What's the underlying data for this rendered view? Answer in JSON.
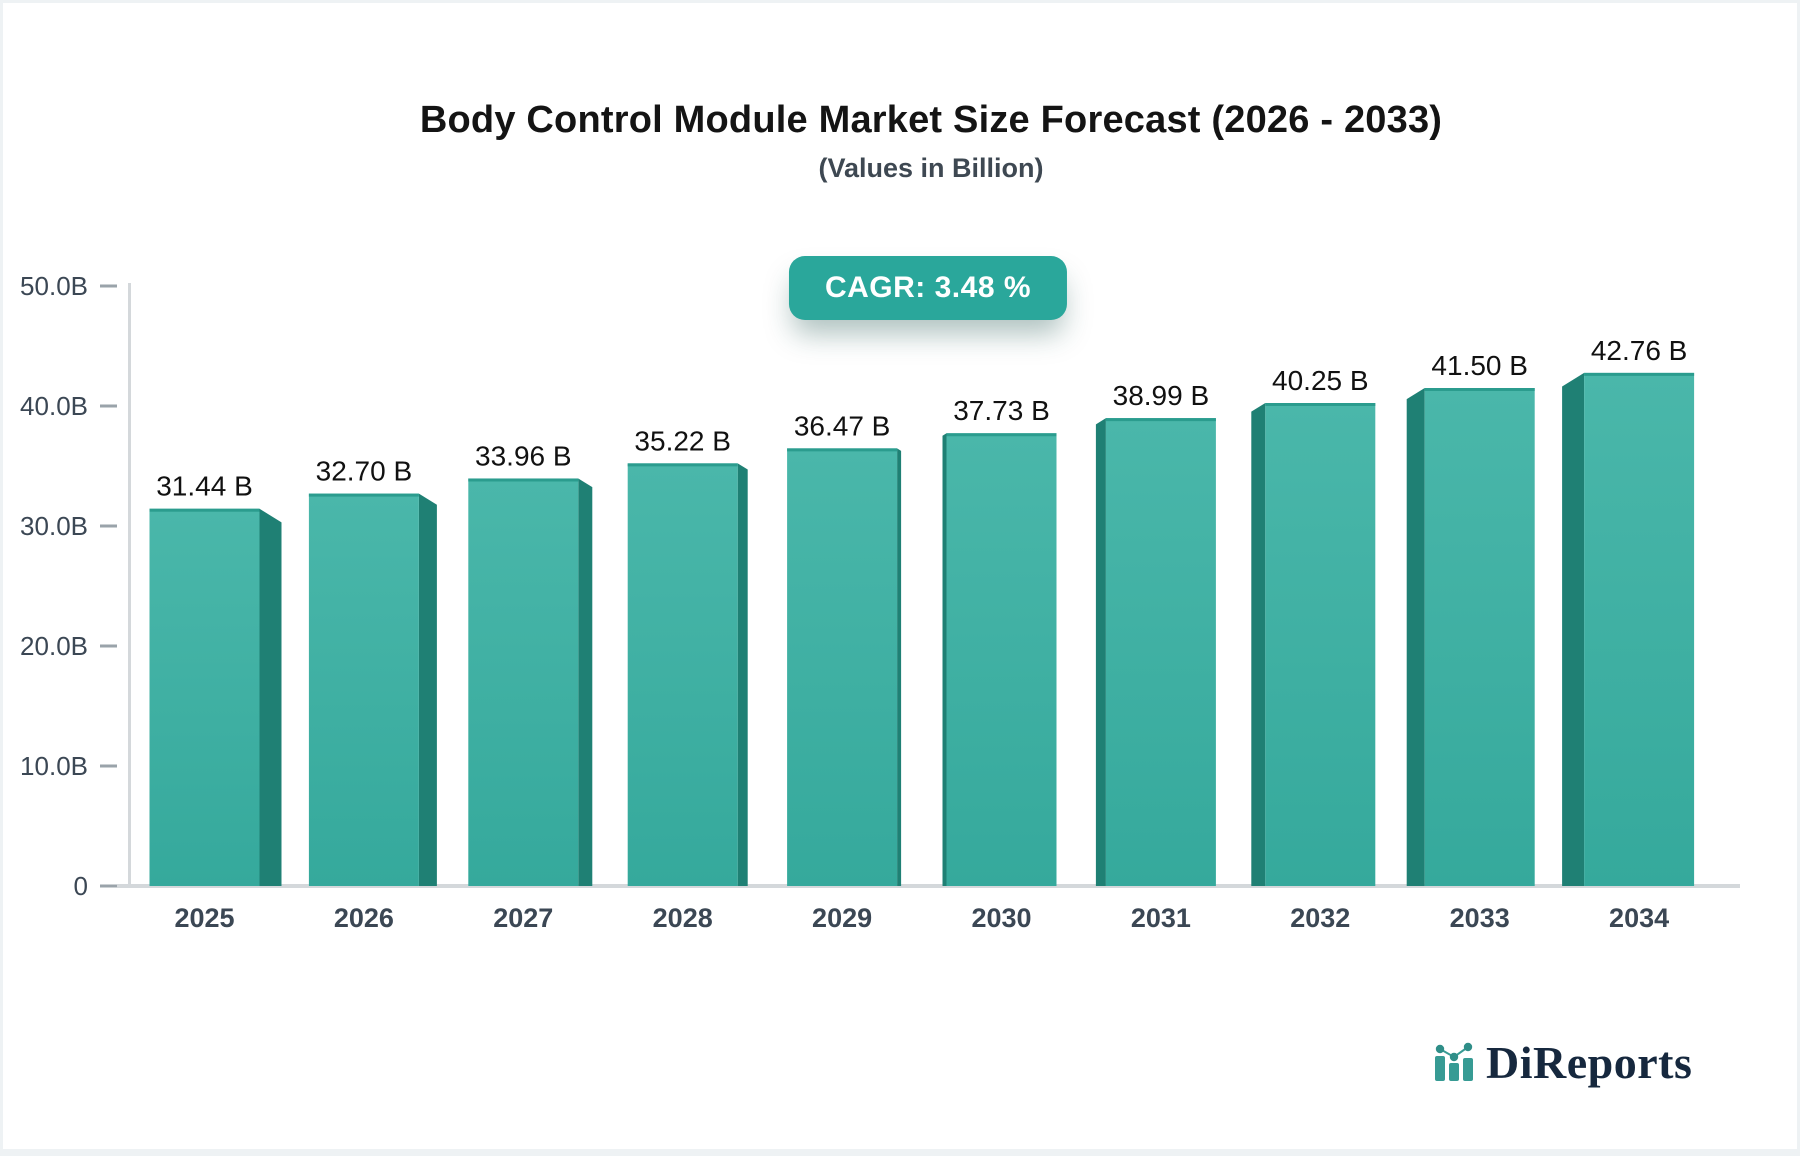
{
  "header": {
    "title": "Body Control Module Market Size Forecast (2026 - 2033)",
    "subtitle": "(Values in Billion)"
  },
  "badge": {
    "label": "CAGR: 3.48 %"
  },
  "chart_data": {
    "type": "bar",
    "title": "Body Control Module Market Size Forecast (2026 - 2033)",
    "subtitle": "(Values in Billion)",
    "categories": [
      "2025",
      "2026",
      "2027",
      "2028",
      "2029",
      "2030",
      "2031",
      "2032",
      "2033",
      "2034"
    ],
    "values": [
      31.44,
      32.7,
      33.96,
      35.22,
      36.47,
      37.73,
      38.99,
      40.25,
      41.5,
      42.76
    ],
    "value_labels": [
      "31.44 B",
      "32.70 B",
      "33.96 B",
      "35.22 B",
      "36.47 B",
      "37.73 B",
      "38.99 B",
      "40.25 B",
      "41.50 B",
      "42.76 B"
    ],
    "cagr": "3.48 %",
    "xlabel": "",
    "ylabel": "",
    "ylim": [
      0,
      50
    ],
    "ytick_values": [
      0,
      10,
      20,
      30,
      40,
      50
    ],
    "ytick_labels": [
      "0",
      "10.0B",
      "20.0B",
      "30.0B",
      "40.0B",
      "50.0B"
    ],
    "grid": false,
    "legend": "none",
    "bar_style": "pseudo-3d"
  },
  "colors": {
    "bar_face_top": "#4ab7aa",
    "bar_face_bottom": "#35a99c",
    "bar_top_edge": "#2b9c8e",
    "bar_side": "#1f8074",
    "badge_bg": "#2aa79b",
    "badge_text": "#ffffff",
    "axis_line": "#d4d8db",
    "tick_dash": "#9aa3aa",
    "tick_text": "#3b4754",
    "value_text": "#111111",
    "title_text": "#141414",
    "subtitle_text": "#3e4852",
    "logo_text": "#16283e",
    "logo_teal": "#379b94",
    "page_bg": "#eef2f4",
    "card_bg": "#ffffff"
  },
  "logo": {
    "text": "DiReports",
    "icon": "mini-bar-chart-icon"
  }
}
